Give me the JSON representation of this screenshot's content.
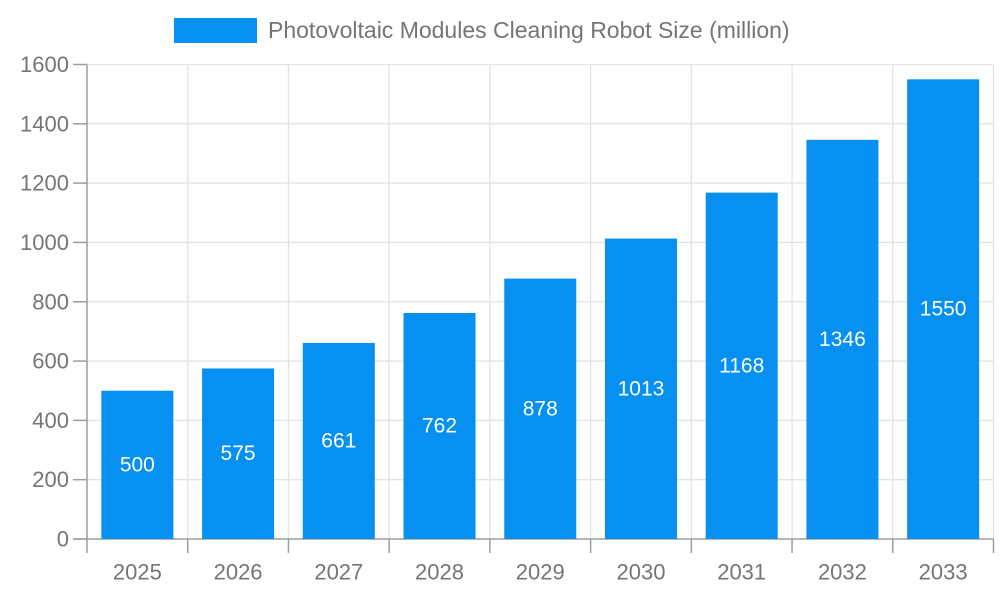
{
  "chart_data": {
    "type": "bar",
    "legend": "Photovoltaic Modules Cleaning Robot Size (million)",
    "legend_position": "top",
    "categories": [
      "2025",
      "2026",
      "2027",
      "2028",
      "2029",
      "2030",
      "2031",
      "2032",
      "2033"
    ],
    "values": [
      500,
      575,
      661,
      762,
      878,
      1013,
      1168,
      1346,
      1550
    ],
    "value_labels": [
      "500",
      "575",
      "661",
      "762",
      "878",
      "1013",
      "1168",
      "1346",
      "1550"
    ],
    "ylabel": "",
    "xlabel": "",
    "ylim": [
      0,
      1600
    ],
    "ytick_step": 200,
    "yticks": [
      0,
      200,
      400,
      600,
      800,
      1000,
      1200,
      1400,
      1600
    ],
    "grid": true,
    "colors": {
      "bar": "#0590F2",
      "bar_value_text": "#ffffff",
      "axis_text": "#757575",
      "grid_line": "#e3e3e3",
      "axis_line": "#9e9e9e",
      "background": "#ffffff"
    }
  }
}
